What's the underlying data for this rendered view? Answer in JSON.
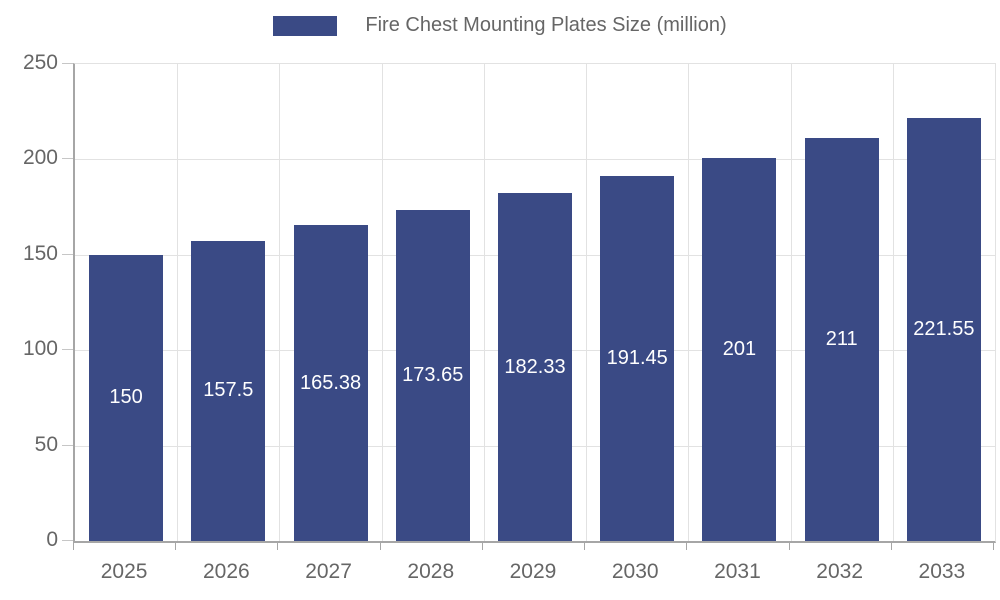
{
  "chart_data": {
    "type": "bar",
    "title": "Fire Chest Mounting Plates Size (million)",
    "series": [
      {
        "name": "Fire Chest Mounting Plates Size (million)",
        "values": [
          150,
          157.5,
          165.38,
          173.65,
          182.33,
          191.45,
          201,
          211,
          221.55
        ],
        "value_labels": [
          "150",
          "157.5",
          "165.38",
          "173.65",
          "182.33",
          "191.45",
          "201",
          "211",
          "221.55"
        ]
      }
    ],
    "categories": [
      "2025",
      "2026",
      "2027",
      "2028",
      "2029",
      "2030",
      "2031",
      "2032",
      "2033"
    ],
    "xlabel": "",
    "ylabel": "",
    "ylim": [
      0,
      250
    ],
    "yticks": [
      0,
      50,
      100,
      150,
      200,
      250
    ],
    "grid": true,
    "legend_position": "top",
    "colors": {
      "bar": "#3A4A85",
      "value_label": "#FFFFFF",
      "axis_text": "#666666",
      "grid_line": "#E2E2E2",
      "axis_line": "#A6A6A6"
    }
  },
  "legend": {
    "items": [
      {
        "label": "Fire Chest Mounting Plates Size (million)",
        "color": "#3A4A85"
      }
    ]
  }
}
